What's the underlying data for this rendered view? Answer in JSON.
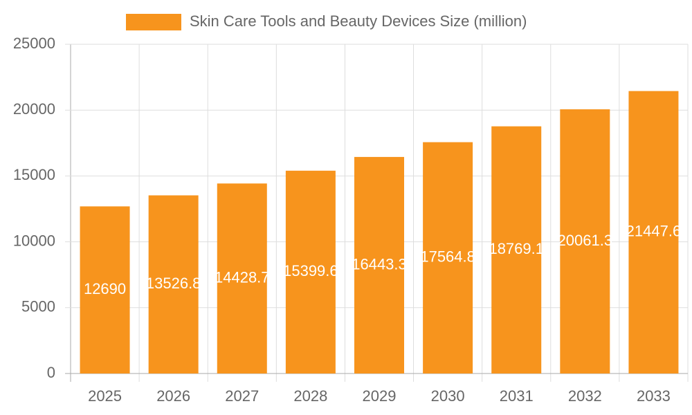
{
  "chart_data": {
    "type": "bar",
    "categories": [
      "2025",
      "2026",
      "2027",
      "2028",
      "2029",
      "2030",
      "2031",
      "2032",
      "2033"
    ],
    "series": [
      {
        "name": "Skin Care Tools and Beauty Devices Size (million)",
        "color": "#f7941d",
        "values": [
          12690,
          13526.8,
          14428.7,
          15399.6,
          16443.3,
          17564.8,
          18769.1,
          20061.3,
          21447.6
        ]
      }
    ],
    "ylim": [
      0,
      25000
    ],
    "yticks": [
      0,
      5000,
      10000,
      15000,
      20000,
      25000
    ],
    "grid": true
  }
}
